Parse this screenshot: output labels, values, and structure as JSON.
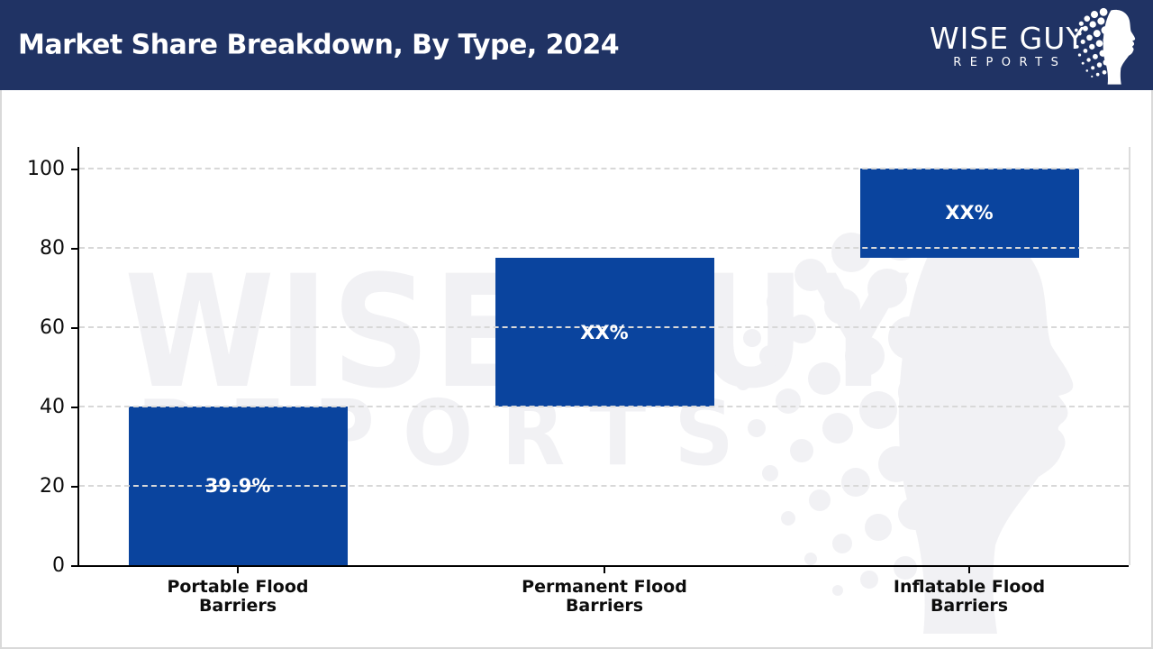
{
  "header": {
    "title": "Market Share Breakdown, By Type, 2024",
    "bg_color": "#203364",
    "logo": {
      "line1": "WISE GUY",
      "line2": "REPORTS"
    }
  },
  "watermark": {
    "line1": "WISE GUY",
    "line2": "REPORTS"
  },
  "chart_data": {
    "type": "bar",
    "variant": "stacked_percentage_breakdown",
    "title": "Market Share Breakdown, By Type, 2024",
    "categories": [
      "Portable Flood Barriers",
      "Permanent Flood Barriers",
      "Inflatable Flood Barriers"
    ],
    "category_label_lines": [
      [
        "Portable Flood",
        "Barriers"
      ],
      [
        "Permanent Flood",
        "Barriers"
      ],
      [
        "Inflatable Flood",
        "Barriers"
      ]
    ],
    "segments": [
      {
        "category": "Portable Flood Barriers",
        "label": "39.9%",
        "base": 0,
        "top": 39.9
      },
      {
        "category": "Permanent Flood Barriers",
        "label": "XX%",
        "base": 39.9,
        "top": 77.6
      },
      {
        "category": "Inflatable Flood Barriers",
        "label": "XX%",
        "base": 77.6,
        "top": 100
      }
    ],
    "ylim": [
      0,
      106
    ],
    "yticks": [
      0,
      20,
      40,
      60,
      80,
      100
    ],
    "grid": {
      "horizontal": true,
      "style": "dashed",
      "color": "#d8d8d8"
    },
    "legend": "none",
    "bar_color": "#0a449e",
    "bar_label_color": "#ffffff",
    "axis_color": "#000000"
  }
}
